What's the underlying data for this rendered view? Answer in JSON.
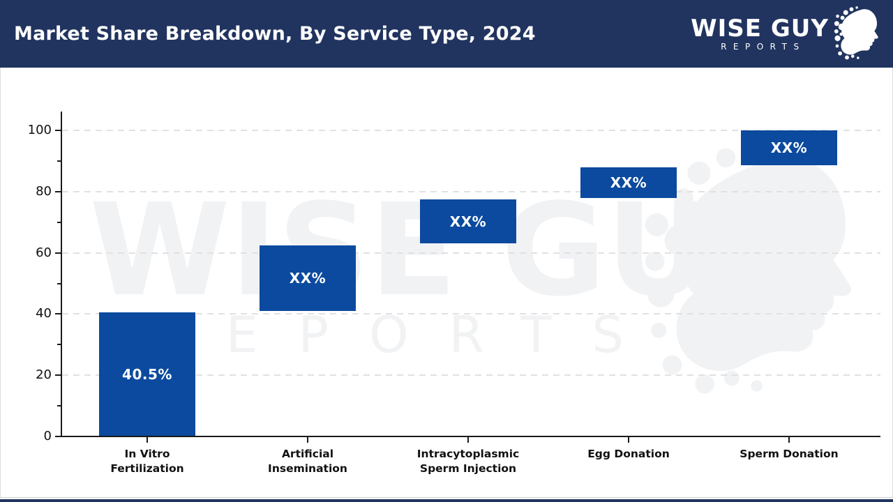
{
  "header": {
    "title": "Market Share Breakdown, By Service Type, 2024",
    "logo": {
      "line1": "WISE GUY",
      "line2": "REPORTS"
    }
  },
  "watermark": {
    "line1": "WISE GUY",
    "line2": "REPORTS"
  },
  "colors": {
    "band": "#21345f",
    "bar": "#0b4a9e",
    "bar_label": "#ffffff",
    "grid": "#e1e1e1",
    "axis": "#1a1a1a",
    "watermark": "#f1f2f4"
  },
  "chart_data": {
    "type": "bar",
    "subtype": "waterfall",
    "title": "Market Share Breakdown, By Service Type, 2024",
    "categories": [
      "In Vitro Fertilization",
      "Artificial Insemination",
      "Intracytoplasmic Sperm Injection",
      "Egg Donation",
      "Sperm Donation"
    ],
    "category_lines": [
      [
        "In Vitro",
        "Fertilization"
      ],
      [
        "Artificial",
        "Insemination"
      ],
      [
        "Intracytoplasmic",
        "Sperm Injection"
      ],
      [
        "Egg Donation"
      ],
      [
        "Sperm Donation"
      ]
    ],
    "segments": [
      {
        "category": "In Vitro Fertilization",
        "start": 0,
        "end": 40.5,
        "label": "40.5%"
      },
      {
        "category": "Artificial Insemination",
        "start": 41,
        "end": 62.5,
        "label": "XX%"
      },
      {
        "category": "Intracytoplasmic Sperm Injection",
        "start": 63,
        "end": 77.5,
        "label": "XX%"
      },
      {
        "category": "Egg Donation",
        "start": 78,
        "end": 88,
        "label": "XX%"
      },
      {
        "category": "Sperm Donation",
        "start": 88.5,
        "end": 100,
        "label": "XX%"
      }
    ],
    "xlabel": "",
    "ylabel": "",
    "ylim": [
      0,
      106
    ],
    "y_ticks": [
      0,
      20,
      40,
      60,
      80,
      100
    ],
    "y_minor_ticks": [
      10,
      30,
      50,
      70,
      90
    ],
    "grid": "horizontal-dashed",
    "legend": null
  }
}
